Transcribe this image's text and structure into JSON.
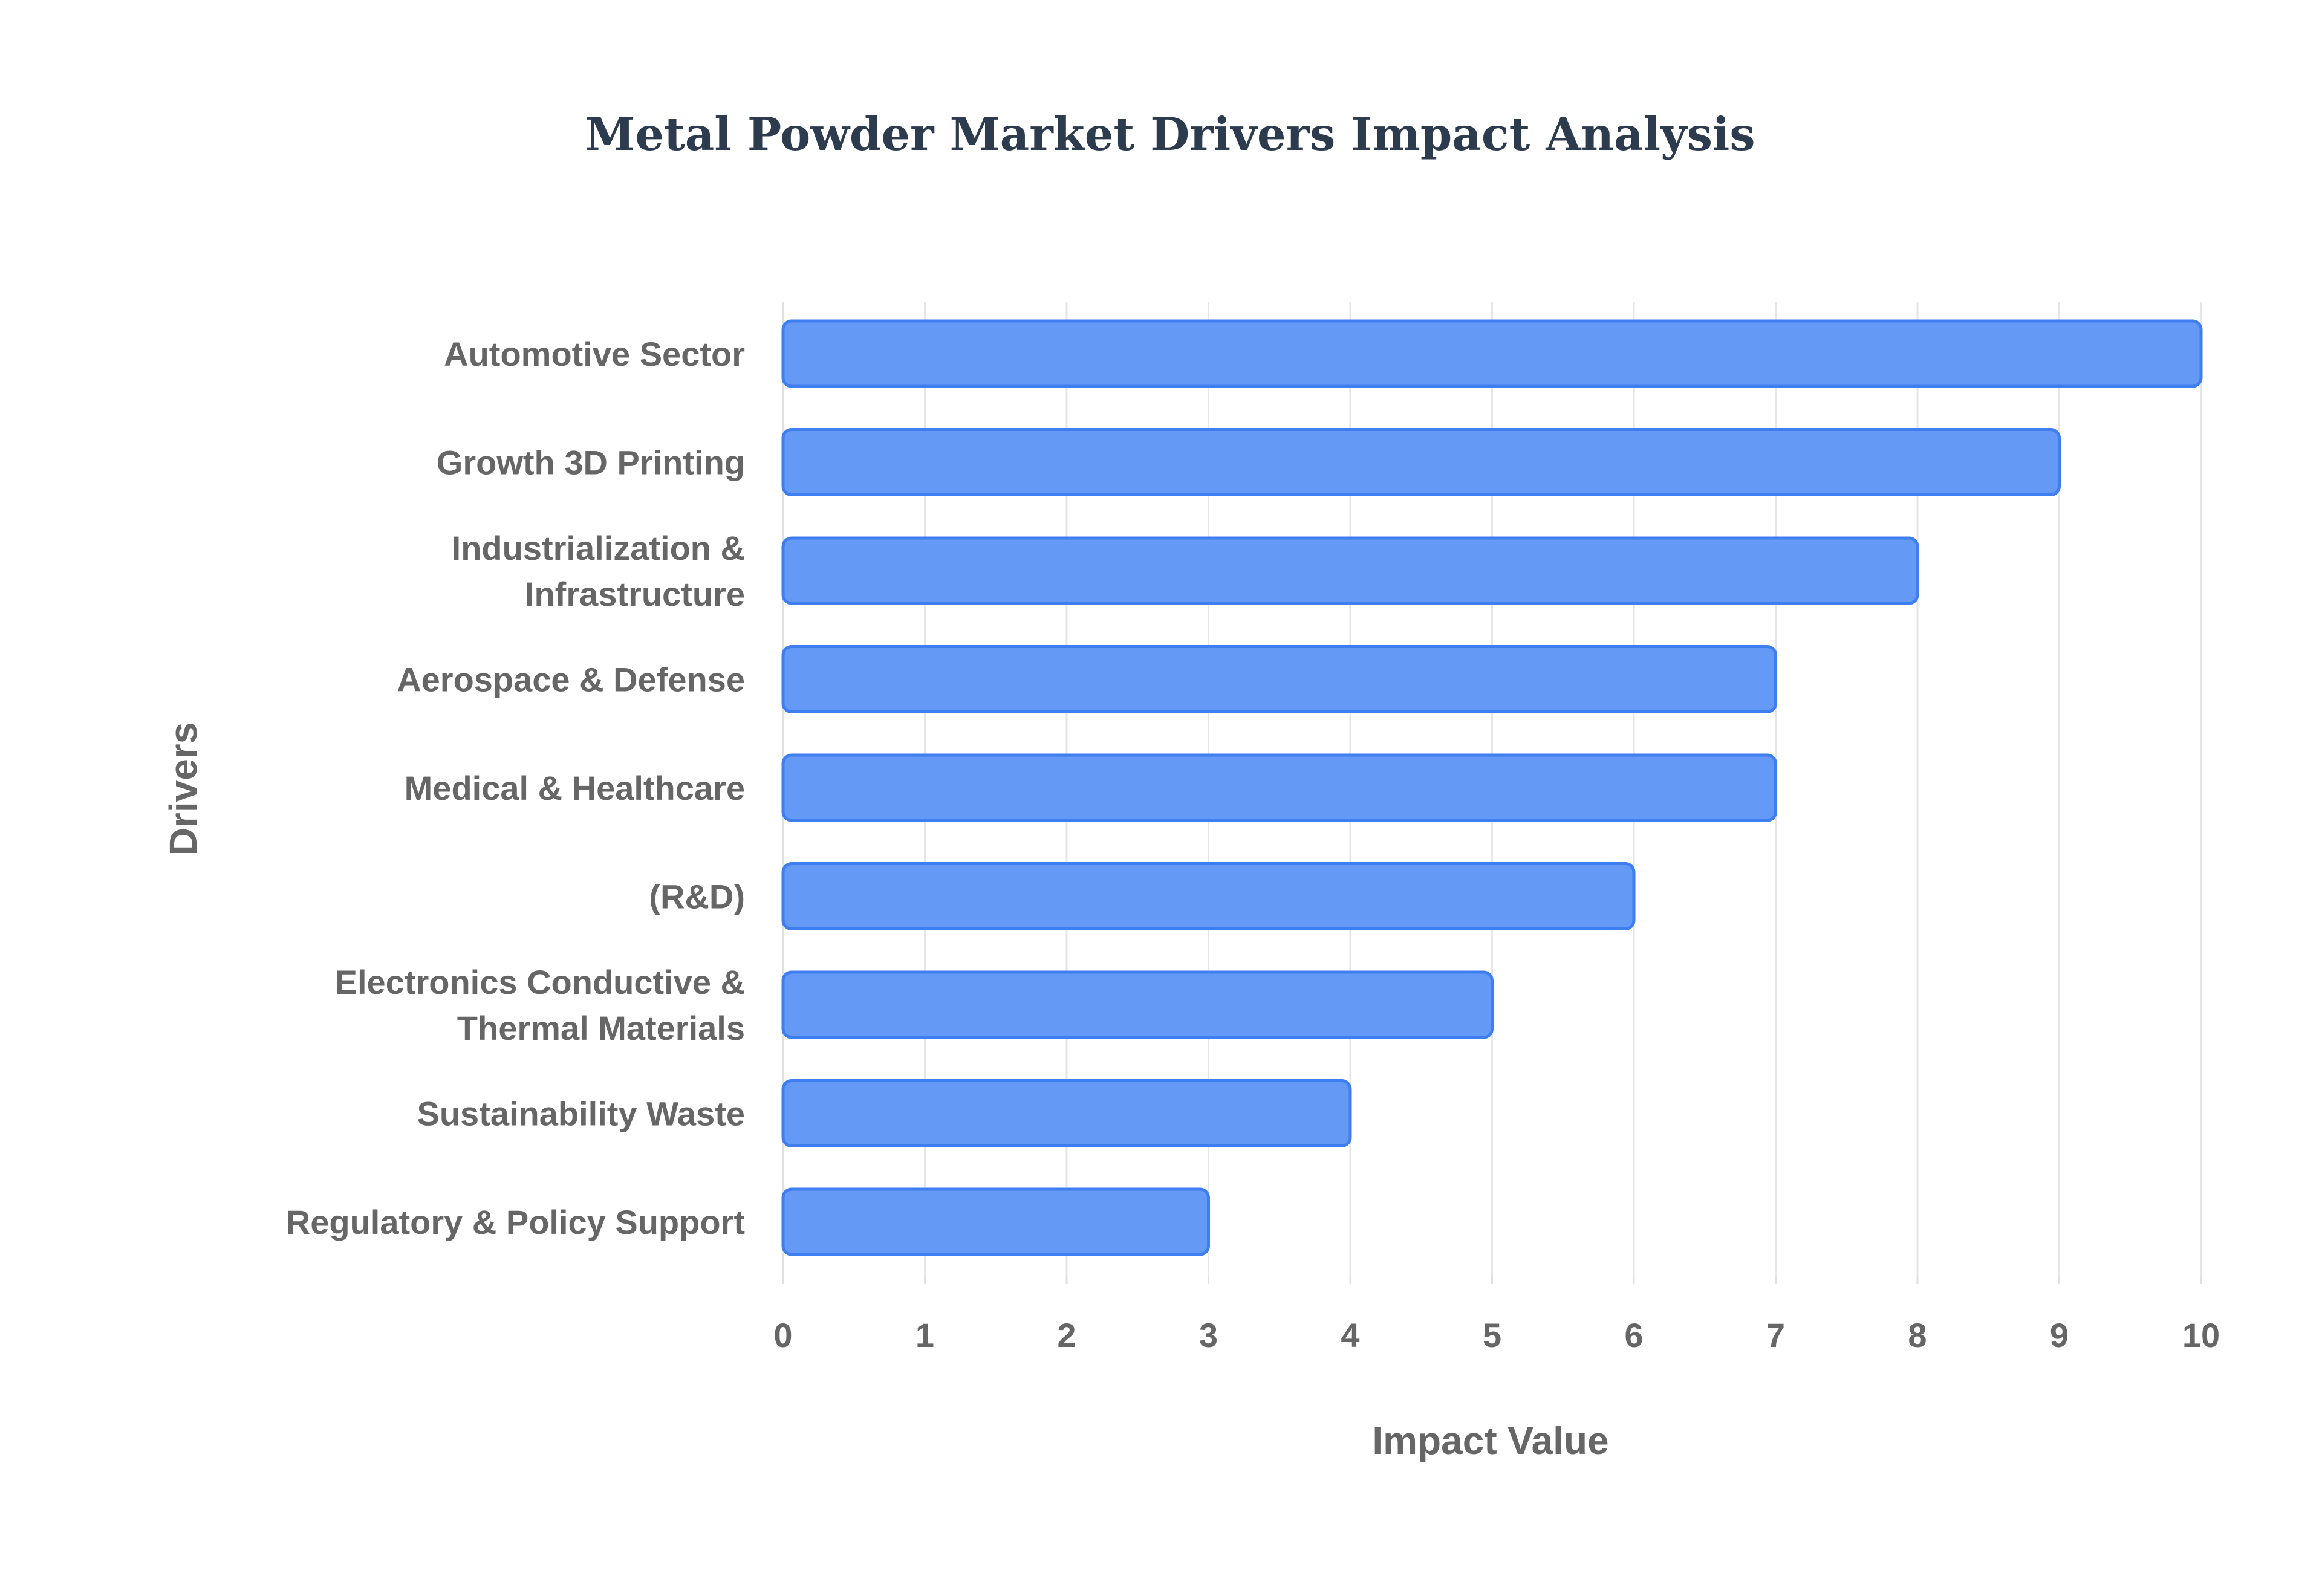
{
  "chart_data": {
    "type": "bar",
    "orientation": "horizontal",
    "title": "Metal Powder Market Drivers Impact Analysis",
    "xlabel": "Impact Value",
    "ylabel": "Drivers",
    "categories": [
      [
        "Automotive Sector"
      ],
      [
        "Growth 3D Printing"
      ],
      [
        "Industrialization &",
        "Infrastructure"
      ],
      [
        "Aerospace & Defense"
      ],
      [
        "Medical & Healthcare"
      ],
      [
        "(R&D)"
      ],
      [
        "Electronics Conductive &",
        "Thermal Materials"
      ],
      [
        "Sustainability Waste"
      ],
      [
        "Regulatory & Policy Support"
      ]
    ],
    "values": [
      10,
      9,
      8,
      7,
      7,
      6,
      5,
      4,
      3
    ],
    "xlim": [
      0,
      10
    ],
    "xticks": [
      "0",
      "1",
      "2",
      "3",
      "4",
      "5",
      "6",
      "7",
      "8",
      "9",
      "10"
    ],
    "grid": true,
    "legend": "none",
    "colors": {
      "bar_fill": "#6499f5",
      "bar_stroke": "#3f7ef0"
    }
  }
}
